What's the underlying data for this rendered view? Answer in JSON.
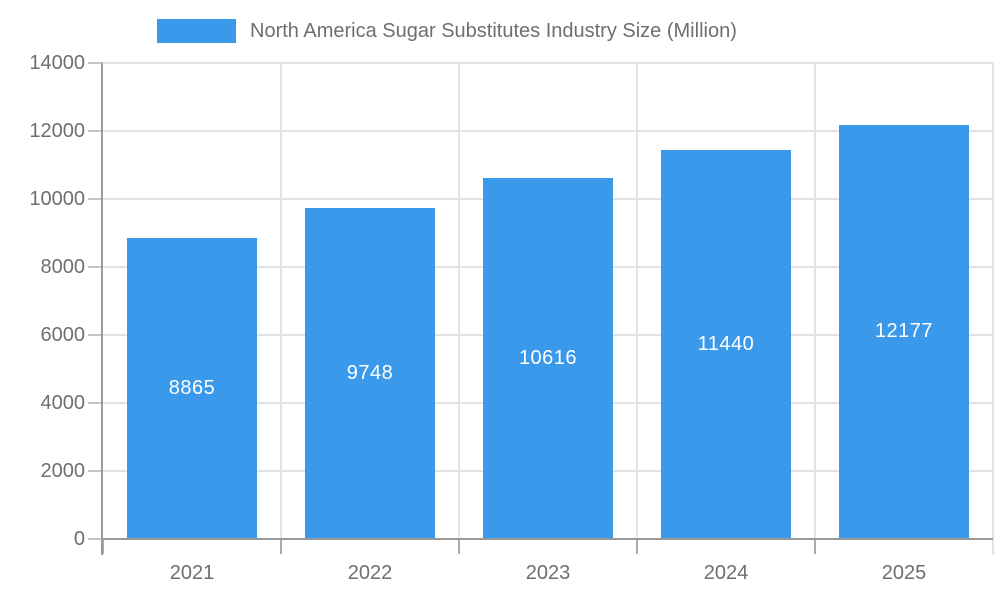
{
  "chart_data": {
    "type": "bar",
    "title": "North America Sugar Substitutes Industry Size (Million)",
    "legend_position": "top",
    "categories": [
      "2021",
      "2022",
      "2023",
      "2024",
      "2025"
    ],
    "values": [
      8865,
      9748,
      10616,
      11440,
      12177
    ],
    "value_labels_visible": true,
    "value_label_position": "center-of-bar",
    "xlabel": "",
    "ylabel": "",
    "ylim": [
      0,
      14000
    ],
    "y_tick_step": 2000,
    "y_ticks": [
      0,
      2000,
      4000,
      6000,
      8000,
      10000,
      12000,
      14000
    ],
    "grid": true,
    "colors": {
      "bar": "#3B99EC",
      "bar_label_text": "#FFFFFF",
      "axis_line": "#999999",
      "y_tick_line": "#C4C4C4",
      "x_tick_line": "#ABABAB",
      "grid_line": "#E3E3E3",
      "axis_text": "#6E6E6E",
      "legend_text": "#6F6F6F",
      "background": "#FFFFFF"
    }
  }
}
